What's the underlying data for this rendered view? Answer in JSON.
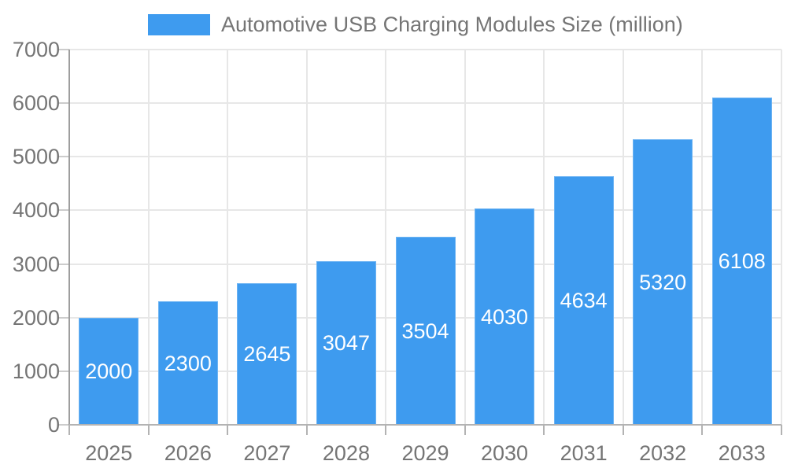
{
  "chart_data": {
    "type": "bar",
    "title": "",
    "xlabel": "",
    "ylabel": "",
    "legend": {
      "position": "top",
      "label": "Automotive USB Charging Modules Size (million)"
    },
    "categories": [
      "2025",
      "2026",
      "2027",
      "2028",
      "2029",
      "2030",
      "2031",
      "2032",
      "2033"
    ],
    "series": [
      {
        "name": "Automotive USB Charging Modules Size (million)",
        "values": [
          2000,
          2300,
          2645,
          3047,
          3504,
          4030,
          4634,
          5320,
          6108
        ]
      }
    ],
    "bar_labels_shown": true,
    "ylim": [
      0,
      7000
    ],
    "yticks": [
      0,
      1000,
      2000,
      3000,
      4000,
      5000,
      6000,
      7000
    ],
    "grid": true,
    "colors": {
      "bar": "#3e9bef",
      "bar_label_text": "#ffffff",
      "axis_text": "#757575",
      "gridline": "#e7e7e7",
      "tick": "#cccccc",
      "axis_line": "#9e9e9e",
      "baseline": "#b3b3b3",
      "background": "#ffffff"
    }
  }
}
